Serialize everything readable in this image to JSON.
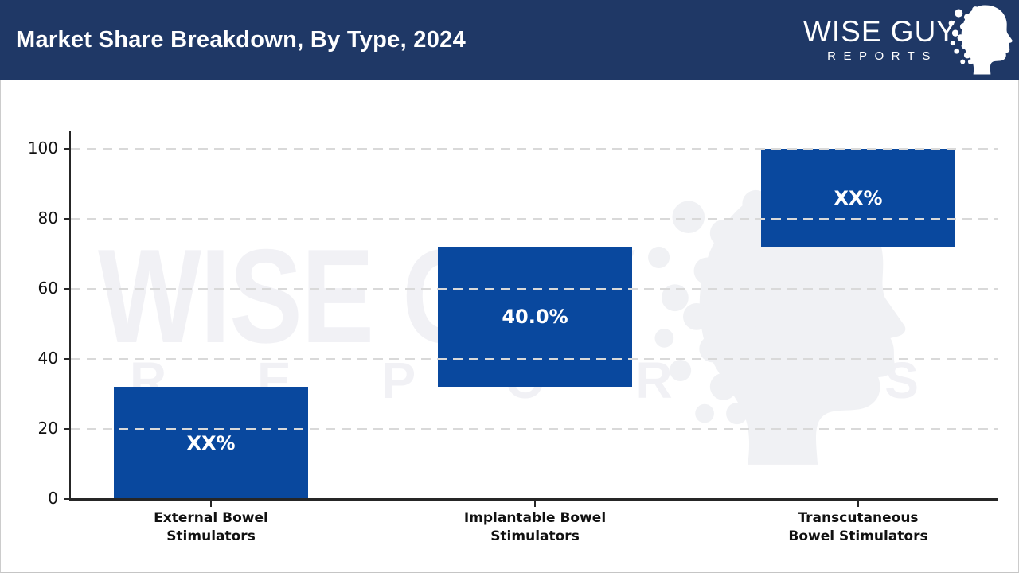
{
  "header": {
    "title": "Market Share Breakdown, By Type, 2024",
    "logo": {
      "line1": "WISE GUY",
      "line2": "REPORTS"
    }
  },
  "watermark": {
    "line1": "WISE GUY",
    "line2": "R E P O R T S"
  },
  "chart_data": {
    "type": "bar",
    "variant": "stacked-waterfall",
    "title": "Market Share Breakdown, By Type, 2024",
    "categories": [
      "External Bowel Stimulators",
      "Implantable Bowel Stimulators",
      "Transcutaneous Bowel Stimulators"
    ],
    "category_lines": [
      [
        "External Bowel",
        "Stimulators"
      ],
      [
        "Implantable Bowel",
        "Stimulators"
      ],
      [
        "Transcutaneous",
        "Bowel Stimulators"
      ]
    ],
    "segments": [
      {
        "category": "External Bowel Stimulators",
        "start": 0,
        "end": 32,
        "label": "XX%"
      },
      {
        "category": "Implantable Bowel Stimulators",
        "start": 32,
        "end": 72,
        "label": "40.0%"
      },
      {
        "category": "Transcutaneous Bowel Stimulators",
        "start": 72,
        "end": 100,
        "label": "XX%"
      }
    ],
    "yticks": [
      0,
      20,
      40,
      60,
      80,
      100
    ],
    "ylim": [
      0,
      105
    ],
    "xlabel": "",
    "ylabel": "",
    "grid": {
      "axis": "y",
      "style": "dashed",
      "color": "#d9d9d9"
    },
    "legend": "none",
    "colors": {
      "bar": "#09489E",
      "header_bg": "#1F3866",
      "label_text": "#ffffff",
      "axis_text": "#111111",
      "watermark": "#f1f1f5"
    }
  }
}
